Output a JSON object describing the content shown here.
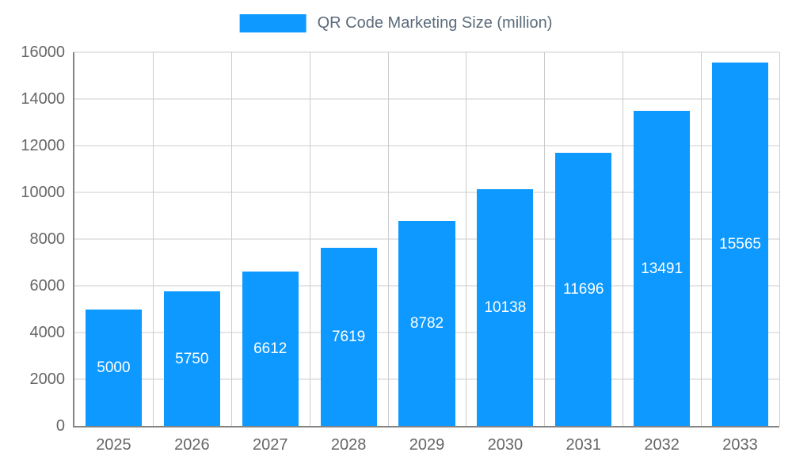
{
  "chart_data": {
    "type": "bar",
    "title": "QR Code Marketing Size (million)",
    "categories": [
      "2025",
      "2026",
      "2027",
      "2028",
      "2029",
      "2030",
      "2031",
      "2032",
      "2033"
    ],
    "values": [
      5000,
      5750,
      6612,
      7619,
      8782,
      10138,
      11696,
      13491,
      15565
    ],
    "xlabel": "",
    "ylabel": "",
    "ylim": [
      0,
      16000
    ],
    "ytick_step": 2000,
    "grid": true,
    "legend_position": "top-center",
    "bar_color": "#0d99ff",
    "value_label_color": "#ffffff",
    "axis_text_color": "#666666",
    "gridline_color": "#cccccc",
    "axis_line_color": "#848484"
  }
}
